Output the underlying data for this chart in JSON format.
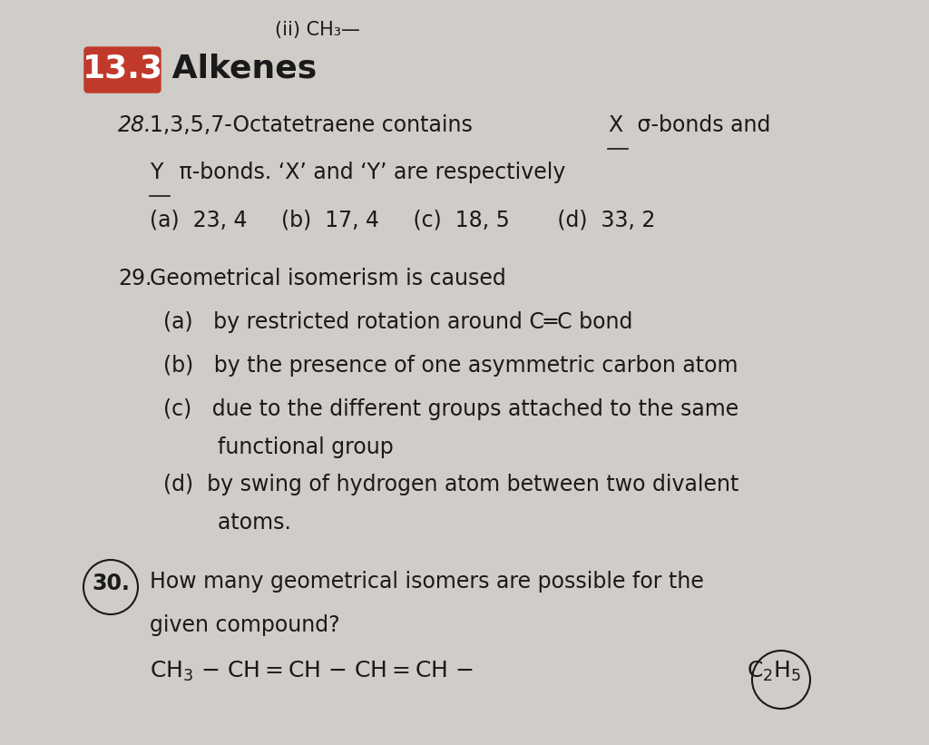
{
  "background_color": "#d0ccc8",
  "title_box_color": "#c0392b",
  "title_box_text": "13.3",
  "title_text": " Alkenes",
  "title_fontsize": 26,
  "q28_number": "28.",
  "q28_line1": "1,3,5,7-Octatetraene contains ",
  "q28_x_label": "X",
  "q28_mid1": " σ-bonds and",
  "q28_y_label": "Y",
  "q28_mid2": " π-bonds. ‘X’ and ‘Y’ are respectively",
  "q28_options": "(a)  23, 4     (b)  17, 4     (c)  18, 5       (d)  33, 2",
  "q29_number": "29.",
  "q29_text": "Geometrical isomerism is caused",
  "q29_a": "(a)   by restricted rotation around C═C bond",
  "q29_b": "(b)   by the presence of one asymmetric carbon atom",
  "q29_c": "(c)   due to the different groups attached to the same",
  "q29_c2": "        functional group",
  "q29_d": "(d)  by swing of hydrogen atom between two divalent",
  "q29_d2": "        atoms.",
  "q30_number": "30.",
  "q30_line1": "How many geometrical isomers are possible for the",
  "q30_line2": "given compound?",
  "font_color": "#1a1a1a",
  "body_fontsize": 17,
  "heading_at_top": "(ii) CH₃—"
}
